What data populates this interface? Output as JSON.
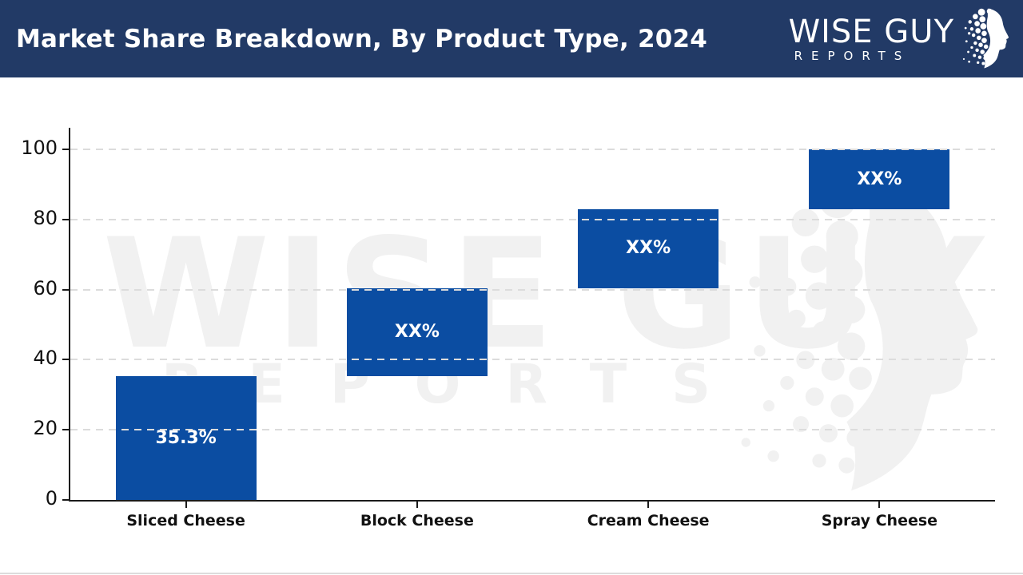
{
  "header": {
    "title": "Market Share Breakdown, By Product Type, 2024",
    "logo": {
      "brand": "WISE GUY",
      "sub": "REPORTS"
    }
  },
  "watermark": {
    "brand": "WISE GUY",
    "sub": "REPORTS"
  },
  "colors": {
    "header_bg": "#223A66",
    "bar": "#0B4DA2",
    "bar_label": "#FFFFFF",
    "axis": "#1A1A1A",
    "grid": "#DCDCDC",
    "tick_label": "#111111",
    "watermark": "#F1F1F1"
  },
  "chart_data": {
    "type": "bar",
    "subtype": "waterfall",
    "title": "Market Share Breakdown, By Product Type, 2024",
    "categories": [
      "Sliced Cheese",
      "Block Cheese",
      "Cream Cheese",
      "Spray Cheese"
    ],
    "segments": [
      {
        "category": "Sliced Cheese",
        "start": 0,
        "end": 35.3,
        "label": "35.3%"
      },
      {
        "category": "Block Cheese",
        "start": 35.3,
        "end": 60.4,
        "label": "XX%"
      },
      {
        "category": "Cream Cheese",
        "start": 60.4,
        "end": 82.9,
        "label": "XX%"
      },
      {
        "category": "Spray Cheese",
        "start": 82.9,
        "end": 100,
        "label": "XX%"
      }
    ],
    "yticks": [
      0,
      20,
      40,
      60,
      80,
      100
    ],
    "ylim": [
      0,
      100
    ],
    "xlabel": "",
    "ylabel": "",
    "grid": true,
    "gridstyle": "dashed",
    "legend": false
  }
}
